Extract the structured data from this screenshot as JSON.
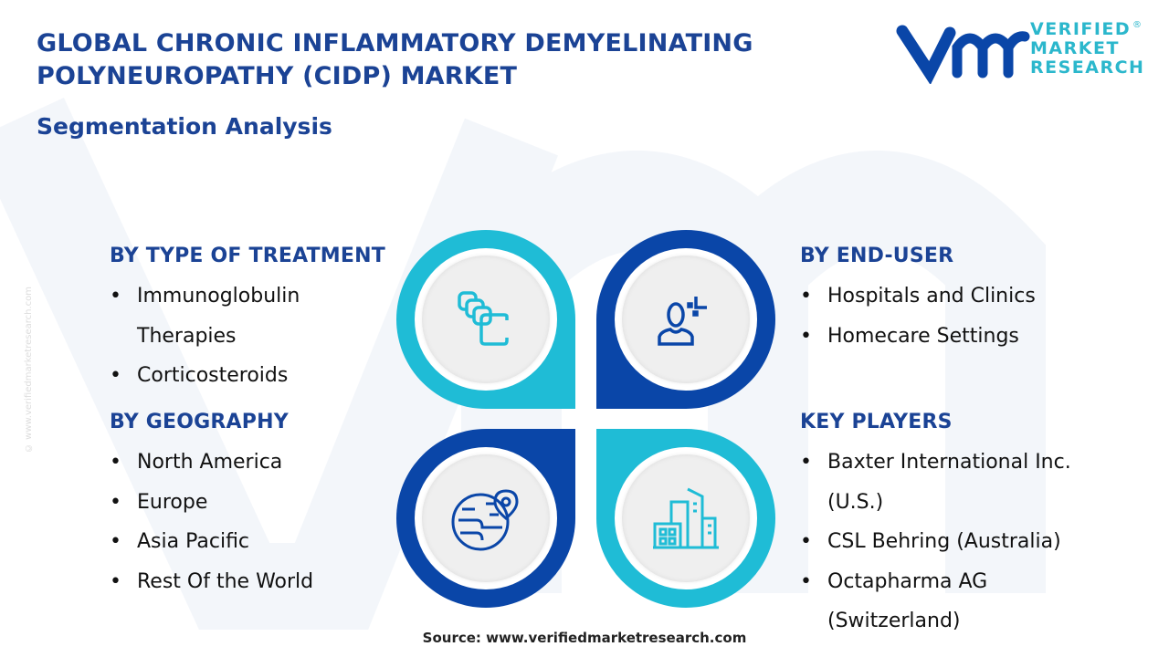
{
  "header": {
    "title_line1": "GLOBAL CHRONIC INFLAMMATORY DEMYELINATING",
    "title_line2": "POLYNEUROPATHY (CIDP) MARKET",
    "subtitle": "Segmentation Analysis"
  },
  "logo": {
    "mark": "vmr",
    "line1": "VERIFIED",
    "line2": "MARKET",
    "line3": "RESEARCH",
    "registered": "®"
  },
  "side_watermark": "© www.verifiedmarketresearch.com",
  "colors": {
    "dark_blue": "#0a46a8",
    "cyan": "#1fbcd6",
    "title": "#1b4395"
  },
  "segments": {
    "treatment": {
      "heading": "BY TYPE OF TREATMENT",
      "items": [
        "Immunoglobulin",
        "Therapies",
        "Corticosteroids"
      ]
    },
    "geography": {
      "heading": "BY GEOGRAPHY",
      "items": [
        "North America",
        "Europe",
        "Asia Pacific",
        "Rest Of the World"
      ]
    },
    "end_user": {
      "heading": "BY END-USER",
      "items": [
        "Hospitals and Clinics",
        "Homecare Settings"
      ]
    },
    "key_players": {
      "heading": "KEY PLAYERS",
      "items": [
        "Baxter International Inc.",
        "(U.S.)",
        "CSL Behring (Australia)",
        "Octapharma AG",
        "(Switzerland)"
      ]
    }
  },
  "icons": [
    "pills-icon",
    "user-icon",
    "globe-location-icon",
    "buildings-icon"
  ],
  "bullet": "•",
  "source": "Source: www.verifiedmarketresearch.com"
}
